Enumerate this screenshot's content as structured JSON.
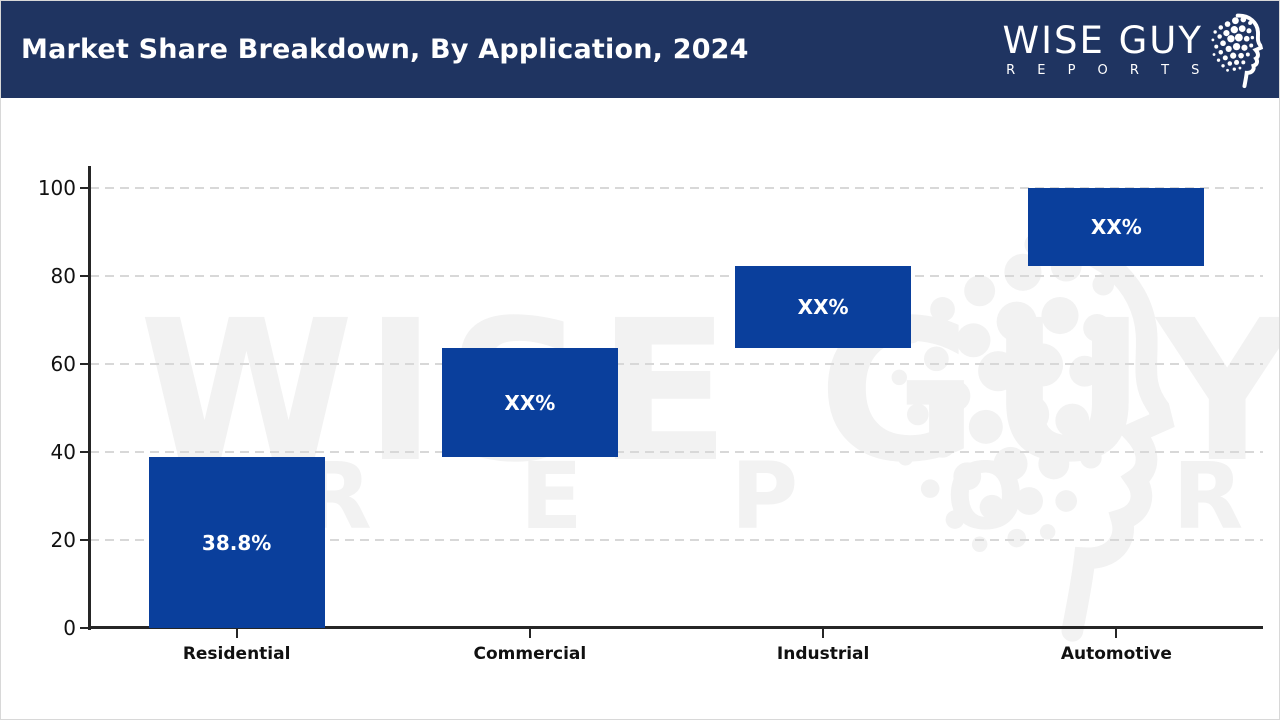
{
  "header": {
    "title": "Market Share Breakdown, By Application, 2024",
    "logo": {
      "brand": "WISE GUY",
      "sub_brand": "R E P O R T S",
      "icon": "dotted-head-icon"
    }
  },
  "watermark": {
    "brand": "WISE GUY",
    "sub_brand": "R E P O R T S",
    "icon": "dotted-head-icon"
  },
  "chart_data": {
    "type": "bar",
    "subtype": "waterfall",
    "title": "Market Share Breakdown, By Application, 2024",
    "categories": [
      "Residential",
      "Commercial",
      "Industrial",
      "Automotive"
    ],
    "segments": [
      {
        "category": "Residential",
        "start": 0,
        "end": 38.8,
        "label": "38.8%"
      },
      {
        "category": "Commercial",
        "start": 38.8,
        "end": 63.6,
        "label": "XX%"
      },
      {
        "category": "Industrial",
        "start": 63.6,
        "end": 82.3,
        "label": "XX%"
      },
      {
        "category": "Automotive",
        "start": 82.3,
        "end": 100,
        "label": "XX%"
      }
    ],
    "xlabel": "",
    "ylabel": "",
    "ylim": [
      0,
      105
    ],
    "yticks": [
      0,
      20,
      40,
      60,
      80,
      100
    ],
    "grid": {
      "horizontal": true,
      "style": "dashed"
    },
    "legend": "none",
    "colors": {
      "bar": "#0a3f9c",
      "bar_label": "#ffffff",
      "axis": "#262626",
      "tick_label": "#111111",
      "grid": "#d8d8d8",
      "header_bg": "#1f3461",
      "header_text": "#ffffff",
      "watermark": "#f2f2f2"
    }
  }
}
